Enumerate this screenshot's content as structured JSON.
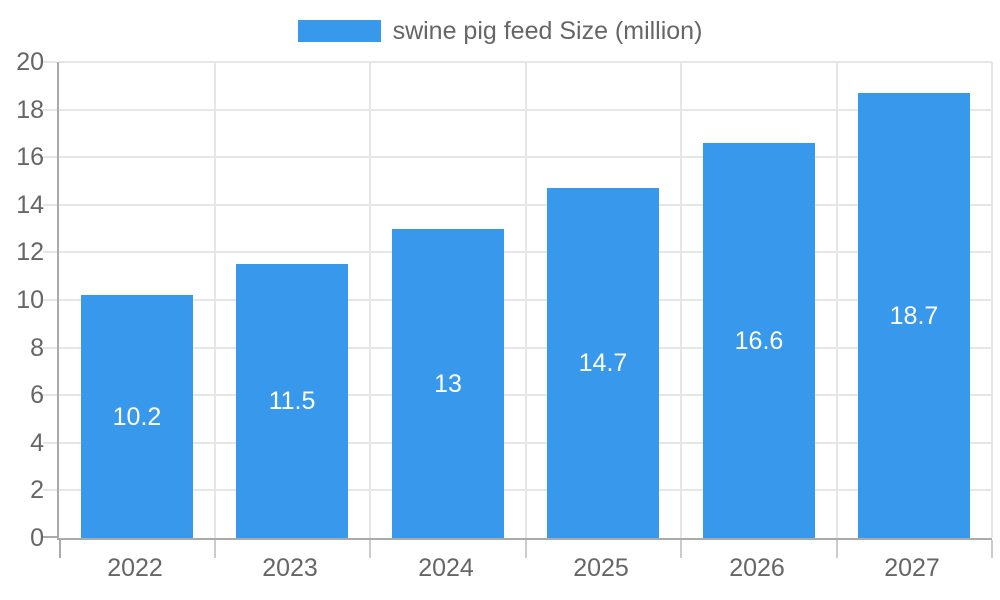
{
  "legend": {
    "label": "swine pig feed Size (million)"
  },
  "chart_data": {
    "type": "bar",
    "title": "",
    "categories": [
      "2022",
      "2023",
      "2024",
      "2025",
      "2026",
      "2027"
    ],
    "series": [
      {
        "name": "swine pig feed Size (million)",
        "values": [
          10.2,
          11.5,
          13,
          14.7,
          16.6,
          18.7
        ]
      }
    ],
    "bar_value_labels": [
      "10.2",
      "11.5",
      "13",
      "14.7",
      "16.6",
      "18.7"
    ],
    "xlabel": "",
    "ylabel": "",
    "ylim": [
      0,
      20
    ],
    "ytick_step": 2,
    "ytick_labels": [
      "0",
      "2",
      "4",
      "6",
      "8",
      "10",
      "12",
      "14",
      "16",
      "18",
      "20"
    ],
    "grid": true,
    "legend_position": "top"
  },
  "colors": {
    "bar": "#3898ec",
    "grid": "#e6e6e6",
    "tick": "#cccccc",
    "axis": "#aaaaaa",
    "text": "#666666",
    "bar_label_text": "#ffffff",
    "background": "#ffffff"
  }
}
